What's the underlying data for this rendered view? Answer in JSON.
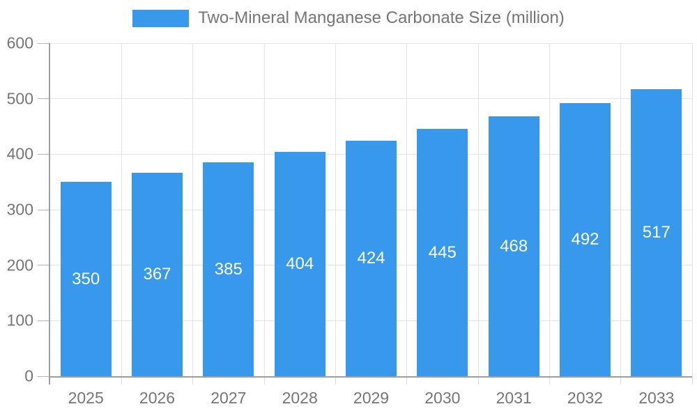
{
  "chart_data": {
    "type": "bar",
    "legend_label": "Two-Mineral Manganese Carbonate Size (million)",
    "categories": [
      "2025",
      "2026",
      "2027",
      "2028",
      "2029",
      "2030",
      "2031",
      "2032",
      "2033"
    ],
    "values": [
      350,
      367,
      385,
      404,
      424,
      445,
      468,
      492,
      517
    ],
    "title": "",
    "xlabel": "",
    "ylabel": "",
    "ylim": [
      0,
      600
    ],
    "yticks": [
      0,
      100,
      200,
      300,
      400,
      500,
      600
    ],
    "grid": true,
    "legend_position": "top",
    "value_labels": "inside-center",
    "colors": {
      "bar": "#3899EC",
      "axis": "#9e9e9e",
      "grid": "#e3e3e3",
      "ytick": "#b5b5b5",
      "xtick": "#d9d9d9",
      "text": "#757575",
      "value_text": "#ffffff",
      "background": "#ffffff"
    }
  }
}
